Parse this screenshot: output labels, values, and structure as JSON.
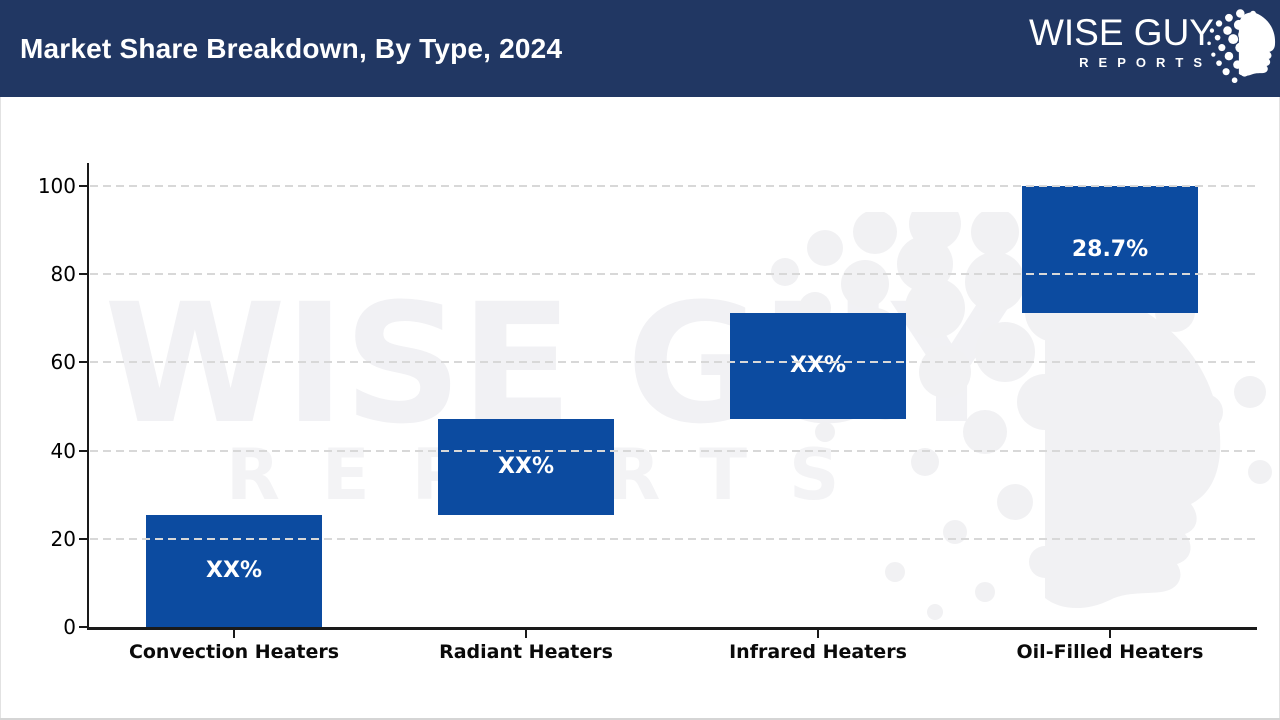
{
  "header": {
    "title": "Market Share Breakdown, By Type, 2024",
    "logo": {
      "line1": "WISE GUY",
      "line2": "REPORTS"
    }
  },
  "watermark": {
    "line1": "WISE GUY",
    "line2": "REPORTS"
  },
  "colors": {
    "header_bg": "#213763",
    "bar_fill": "#0c4ba0",
    "bar_label_text": "#ffffff",
    "grid": "#d8d8d8",
    "axis": "#1a1a1a",
    "watermark_gray": "#f1f1f4"
  },
  "chart_data": {
    "type": "bar",
    "subtype": "floating-waterfall",
    "title": "Market Share Breakdown, By Type, 2024",
    "xlabel": "",
    "ylabel": "",
    "ylim": [
      0,
      100
    ],
    "yticks": [
      0,
      20,
      40,
      60,
      80,
      100
    ],
    "grid": "horizontal-dashed",
    "grid_above_bars": true,
    "legend": "none",
    "categories": [
      "Convection Heaters",
      "Radiant Heaters",
      "Infrared Heaters",
      "Oil-Filled Heaters"
    ],
    "bars": [
      {
        "category": "Convection Heaters",
        "start": 0,
        "end": 25.4,
        "value_label": "XX%"
      },
      {
        "category": "Radiant Heaters",
        "start": 25.4,
        "end": 47.2,
        "value_label": "XX%"
      },
      {
        "category": "Infrared Heaters",
        "start": 47.2,
        "end": 71.3,
        "value_label": "XX%"
      },
      {
        "category": "Oil-Filled Heaters",
        "start": 71.3,
        "end": 100,
        "value_label": "28.7%"
      }
    ]
  }
}
